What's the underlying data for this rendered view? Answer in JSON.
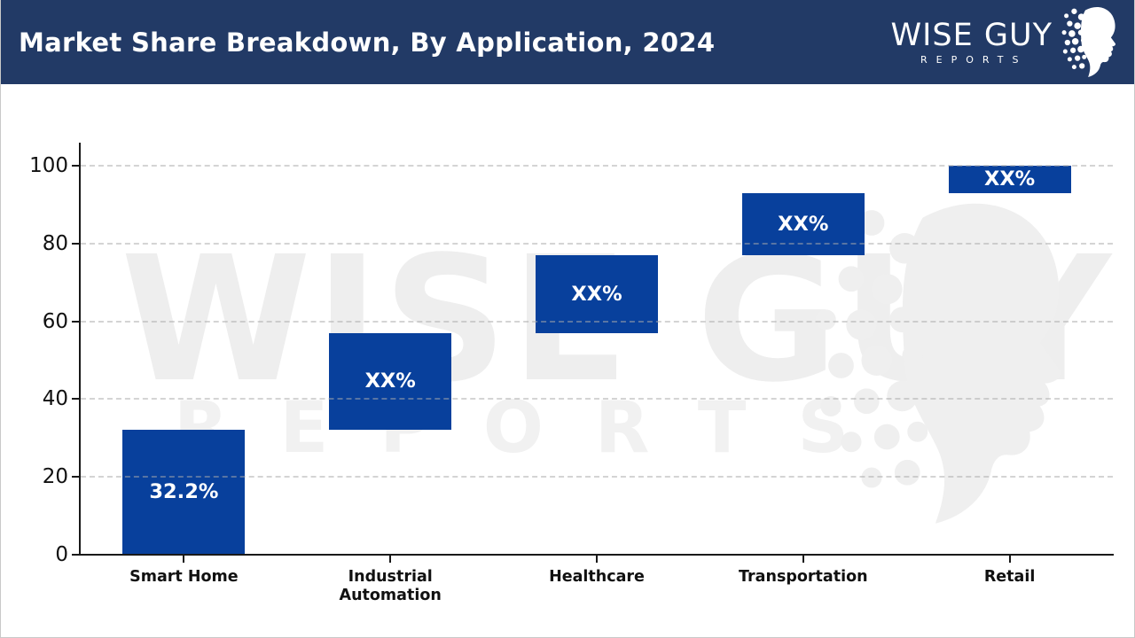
{
  "header": {
    "title": "Market Share Breakdown, By Application, 2024",
    "logo": {
      "line1": "WISE GUY",
      "line2": "REPORTS"
    }
  },
  "watermark": {
    "line1": "WISE GUY",
    "line2": "REPORTS"
  },
  "colors": {
    "header_bg": "#223a66",
    "title_text": "#ffffff",
    "bar": "#08409c",
    "bar_label": "#ffffff",
    "axis": "#191919",
    "gridline": "#d9d9d9",
    "watermark": "#eeeeee"
  },
  "chart_data": {
    "type": "bar",
    "subtype": "floating-waterfall",
    "title": "Market Share Breakdown, By Application, 2024",
    "categories": [
      "Smart Home",
      "Industrial Automation",
      "Healthcare",
      "Transportation",
      "Retail"
    ],
    "segments": [
      {
        "category": "Smart Home",
        "start": 0,
        "end": 32.2,
        "label": "32.2%"
      },
      {
        "category": "Industrial Automation",
        "start": 32.2,
        "end": 57,
        "label": "XX%"
      },
      {
        "category": "Healthcare",
        "start": 57,
        "end": 77,
        "label": "XX%"
      },
      {
        "category": "Transportation",
        "start": 77,
        "end": 93,
        "label": "XX%"
      },
      {
        "category": "Retail",
        "start": 93,
        "end": 100,
        "label": "XX%"
      }
    ],
    "xlabel": "",
    "ylabel": "",
    "ylim": [
      0,
      100
    ],
    "yticks": [
      0,
      20,
      40,
      60,
      80,
      100
    ],
    "grid": "horizontal-dashed-over-bars",
    "legend": "none"
  }
}
